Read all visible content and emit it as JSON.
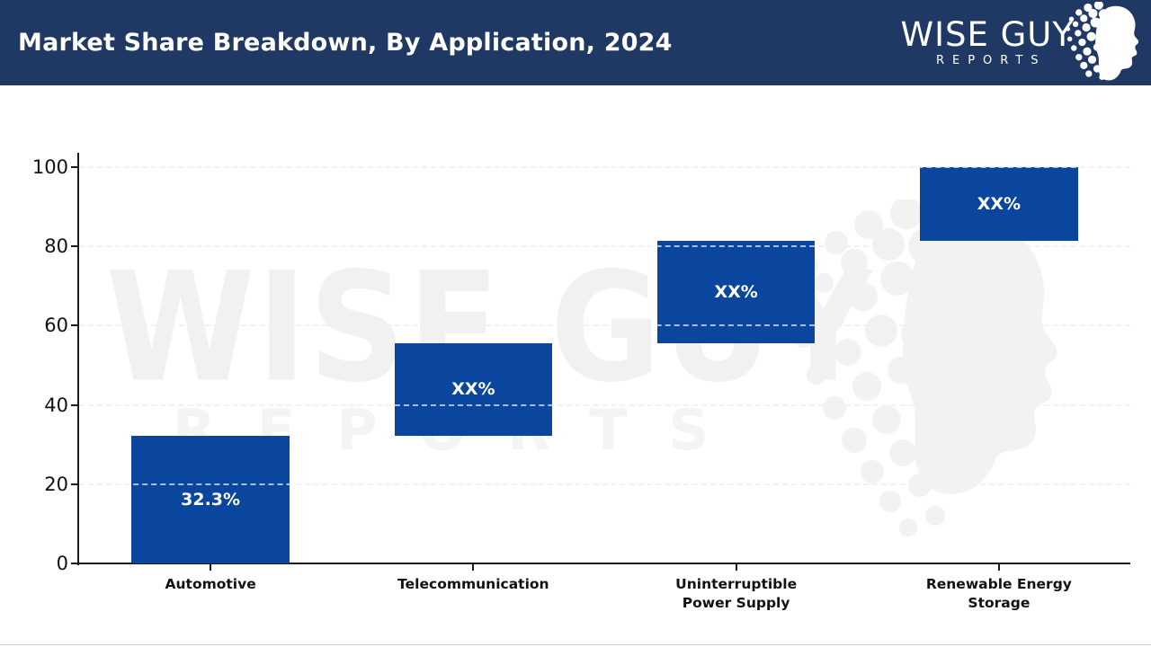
{
  "header": {
    "title": "Market Share Breakdown, By Application, 2024",
    "bg_color": "#1F3864",
    "logo": {
      "wordmark": "WISE GUY",
      "subtext": "REPORTS"
    }
  },
  "watermark": {
    "line1": "WISE GUY",
    "line2": "REPORTS"
  },
  "chart_data": {
    "type": "bar",
    "subtype": "waterfall-segments",
    "title": "Market Share Breakdown, By Application, 2024",
    "xlabel": "",
    "ylabel": "",
    "categories": [
      "Automotive",
      "Telecommunication",
      "Uninterruptible\nPower Supply",
      "Renewable Energy\nStorage"
    ],
    "segments": [
      {
        "category": "Automotive",
        "start": 0,
        "end": 32.3,
        "label": "32.3%"
      },
      {
        "category": "Telecommunication",
        "start": 32.3,
        "end": 55.5,
        "label": "XX%"
      },
      {
        "category": "Uninterruptible Power Supply",
        "start": 55.5,
        "end": 81.5,
        "label": "XX%"
      },
      {
        "category": "Renewable Energy Storage",
        "start": 81.5,
        "end": 100,
        "label": "XX%"
      }
    ],
    "yticks": [
      0,
      20,
      40,
      60,
      80,
      100
    ],
    "ylim": [
      0,
      104
    ],
    "grid": true,
    "grid_style": "dashed",
    "legend": null,
    "bar_color": "#0A469D",
    "axis_color": "#1a1a1a"
  }
}
